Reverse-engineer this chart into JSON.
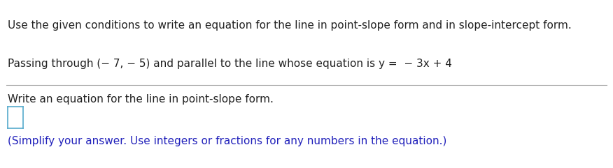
{
  "background_color": "#ffffff",
  "line1": "Use the given conditions to write an equation for the line in point-slope form and in slope-intercept form.",
  "line2": "Passing through (− 7, − 5) and parallel to the line whose equation is y =  − 3x + 4",
  "line3": "Write an equation for the line in point-slope form.",
  "line4": "(Simplify your answer. Use integers or fractions for any numbers in the equation.)",
  "text_color_black": "#222222",
  "text_color_blue": "#2222bb",
  "divider_color": "#aaaaaa",
  "box_color": "#55aacc",
  "font_size": 11.0,
  "fig_width": 8.76,
  "fig_height": 2.41,
  "dpi": 100
}
